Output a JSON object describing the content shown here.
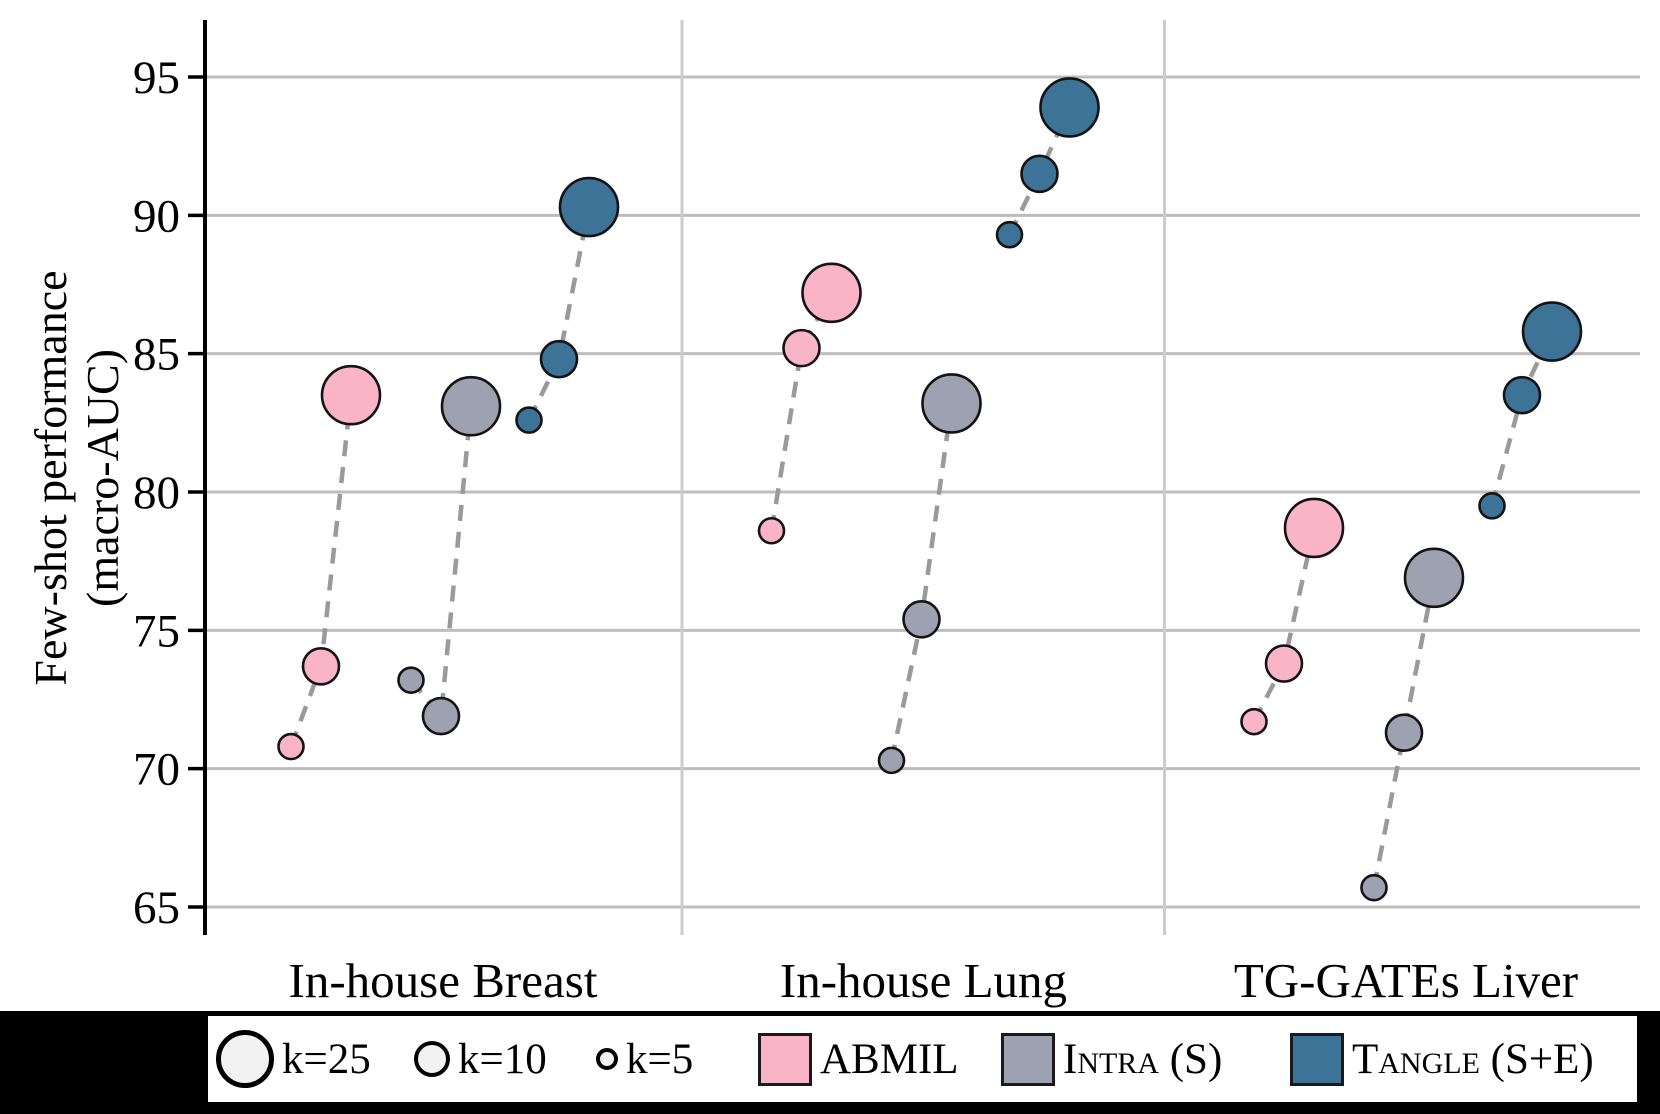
{
  "chart_data": {
    "type": "scatter",
    "title": "",
    "ylabel_lines": [
      "Few-shot performance",
      "(macro-AUC)"
    ],
    "yticks": [
      65,
      70,
      75,
      80,
      85,
      90,
      95
    ],
    "ylim": [
      64.0,
      97.0
    ],
    "grid": "horizontal",
    "legend_position": "bottom",
    "groups": [
      "In-house Breast",
      "In-house Lung",
      "TG-GATEs Liver"
    ],
    "k_levels": [
      "k=5",
      "k=10",
      "k=25"
    ],
    "series": [
      {
        "name": "ABMIL",
        "color": "#f9b4c7",
        "values": {
          "In-house Breast": {
            "k5": 70.8,
            "k10": 73.7,
            "k25": 83.5
          },
          "In-house Lung": {
            "k5": 78.6,
            "k10": 85.2,
            "k25": 87.2
          },
          "TG-GATEs Liver": {
            "k5": 71.7,
            "k10": 73.8,
            "k25": 78.7
          }
        }
      },
      {
        "name": "Intra (S)",
        "color": "#9da1b0",
        "values": {
          "In-house Breast": {
            "k5": 73.2,
            "k10": 71.9,
            "k25": 83.1
          },
          "In-house Lung": {
            "k5": 70.3,
            "k10": 75.4,
            "k25": 83.2
          },
          "TG-GATEs Liver": {
            "k5": 65.7,
            "k10": 71.3,
            "k25": 76.9
          }
        }
      },
      {
        "name": "Tangle (S+E)",
        "color": "#3d7396",
        "values": {
          "In-house Breast": {
            "k5": 82.6,
            "k10": 84.8,
            "k25": 90.3
          },
          "In-house Lung": {
            "k5": 89.3,
            "k10": 91.5,
            "k25": 93.9
          },
          "TG-GATEs Liver": {
            "k5": 79.5,
            "k10": 83.5,
            "k25": 85.8
          }
        }
      }
    ],
    "colors": {
      "gridline": "#bdbdbd",
      "panel_separator": "#cccccc",
      "axis": "#000000",
      "connector_dash": "#9a9a9a",
      "bubble_stroke": "#141414",
      "legend_circle_fill": "#f2f2f2"
    }
  },
  "legend": {
    "size_items": [
      {
        "label": "k=25"
      },
      {
        "label": "k=10"
      },
      {
        "label": "k=5"
      }
    ],
    "series_items": [
      {
        "label": "ABMIL",
        "color": "#f9b4c7"
      },
      {
        "label": "Intra (S)",
        "color": "#9da1b0"
      },
      {
        "label": "Tangle (S+E)",
        "color": "#3d7396"
      }
    ]
  }
}
